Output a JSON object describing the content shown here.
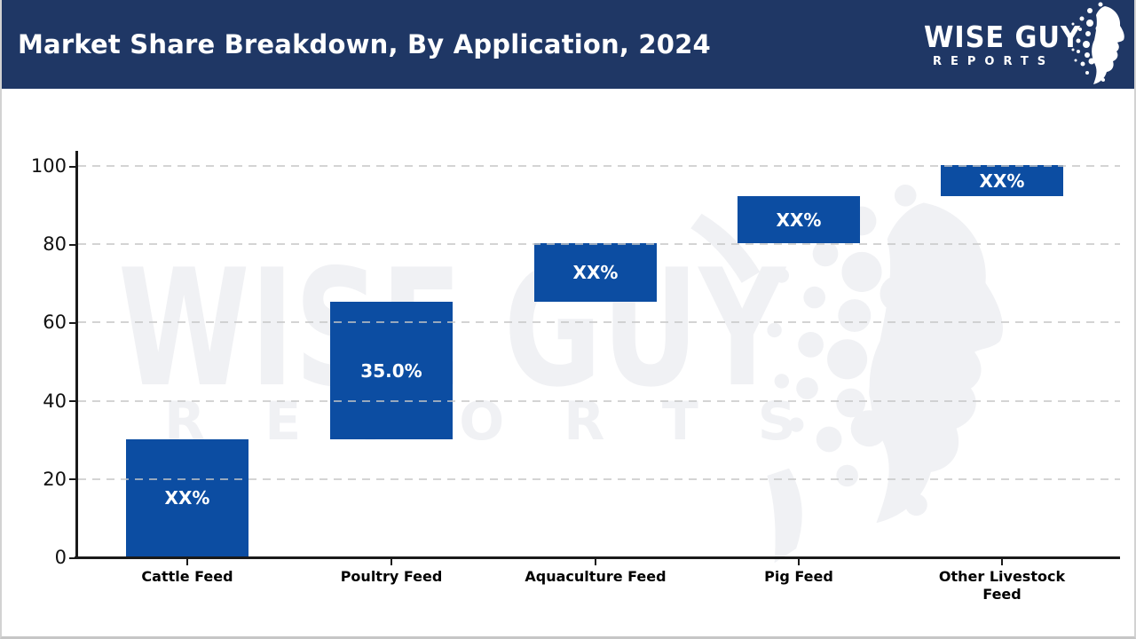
{
  "header": {
    "title": "Market Share Breakdown, By Application, 2024",
    "bg_color": "#1F3765",
    "logo": {
      "line1": "WISE GUY",
      "line2": "REPORTS"
    }
  },
  "watermark": {
    "line1": "WISE GUY",
    "line2": "REPORTS"
  },
  "chart_data": {
    "type": "bar",
    "subtype": "waterfall",
    "title": "Market Share Breakdown, By Application, 2024",
    "xlabel": "",
    "ylabel": "",
    "categories": [
      "Cattle Feed",
      "Poultry Feed",
      "Aquaculture Feed",
      "Pig Feed",
      "Other Livestock Feed"
    ],
    "segments": [
      {
        "category": "Cattle Feed",
        "start": 0,
        "end": 30,
        "value_pct_est": 30,
        "label": "XX%"
      },
      {
        "category": "Poultry Feed",
        "start": 30,
        "end": 65,
        "value_pct_est": 35,
        "label": "35.0%"
      },
      {
        "category": "Aquaculture Feed",
        "start": 65,
        "end": 80,
        "value_pct_est": 15,
        "label": "XX%"
      },
      {
        "category": "Pig Feed",
        "start": 80,
        "end": 92,
        "value_pct_est": 12,
        "label": "XX%"
      },
      {
        "category": "Other Livestock Feed",
        "start": 92,
        "end": 100,
        "value_pct_est": 8,
        "label": "XX%"
      }
    ],
    "yticks": [
      0,
      20,
      40,
      60,
      80,
      100
    ],
    "ylim": [
      0,
      103.6
    ],
    "grid": "dashed-horizontal-over-bars",
    "legend": "none",
    "bar_color": "#0C4DA2",
    "bar_label_color": "#ffffff",
    "axis_color": "#1a1a1a",
    "gridline_color": "#c6c6c6"
  }
}
